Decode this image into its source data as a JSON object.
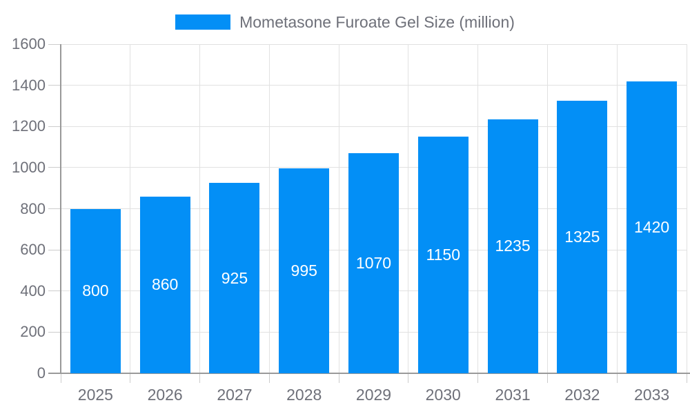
{
  "chart_data": {
    "type": "bar",
    "title": "Mometasone Furoate Gel Size (million)",
    "categories": [
      "2025",
      "2026",
      "2027",
      "2028",
      "2029",
      "2030",
      "2031",
      "2032",
      "2033"
    ],
    "values": [
      800,
      860,
      925,
      995,
      1070,
      1150,
      1235,
      1325,
      1420
    ],
    "series": [
      {
        "name": "Mometasone Furoate Gel Size (million)",
        "values": [
          800,
          860,
          925,
          995,
          1070,
          1150,
          1235,
          1325,
          1420
        ]
      }
    ],
    "xlabel": "",
    "ylabel": "",
    "ylim": [
      0,
      1600
    ],
    "yticks": [
      0,
      200,
      400,
      600,
      800,
      1000,
      1200,
      1400,
      1600
    ],
    "grid": true,
    "legend_position": "top-center",
    "bar_color": "#038FF6",
    "value_label_color": "#FFFFFF",
    "axis_text_color": "#6E7079"
  }
}
